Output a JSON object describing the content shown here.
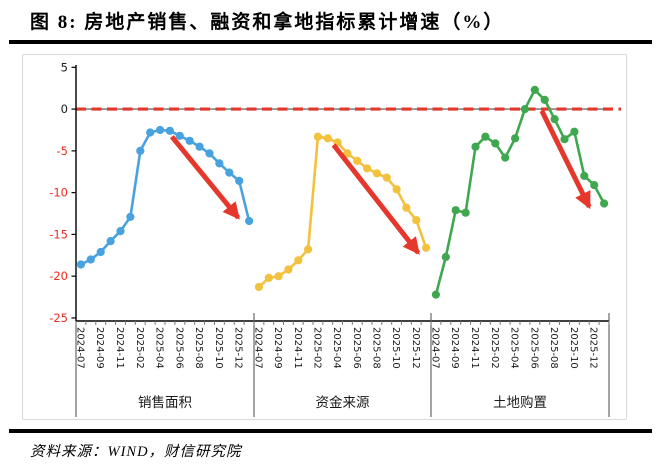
{
  "title": "图 8:  房地产销售、融资和拿地指标累计增速（%）",
  "source": "资料来源：WIND，财信研究院",
  "chart_data": {
    "type": "line",
    "title": "房地产销售、融资和拿地指标累计增速（%）",
    "unit": "%",
    "ylim": [
      -25,
      5
    ],
    "yticks": [
      5,
      0,
      -5,
      -10,
      -15,
      -20,
      -25
    ],
    "grid": false,
    "legend_position": "none",
    "zero_line": {
      "style": "dashed",
      "value": 0
    },
    "x_tick_labels": [
      "2024-07",
      "2024-09",
      "2024-11",
      "2025-02",
      "2025-04",
      "2025-06",
      "2025-08",
      "2025-10",
      "2025-12"
    ],
    "x_tick_label_every": 2,
    "months_per_group": 18,
    "colors": {
      "red": "#E5372B",
      "negative_tick": "#EE2E23",
      "zero_gray": "#6E6E6E",
      "axis": "#000000",
      "minor_tick": "#737373",
      "divider": "#595959",
      "text": "#1a1a1a"
    },
    "groups": [
      {
        "label": "销售面积",
        "color": "#47A2DF",
        "values": [
          -18.6,
          -18.0,
          -17.1,
          -15.8,
          -14.6,
          -12.9,
          -5.0,
          -2.8,
          -2.5,
          -2.6,
          -3.2,
          -3.8,
          -4.5,
          -5.3,
          -6.5,
          -7.6,
          -8.6,
          -13.4
        ]
      },
      {
        "label": "资金来源",
        "color": "#F2C13D",
        "values": [
          -21.3,
          -20.2,
          -20.0,
          -19.2,
          -18.1,
          -16.8,
          -3.3,
          -3.5,
          -4.0,
          -5.3,
          -6.2,
          -7.1,
          -7.7,
          -8.2,
          -9.6,
          -11.8,
          -13.3,
          -16.6
        ]
      },
      {
        "label": "土地购置",
        "color": "#3FA74F",
        "values": [
          -22.2,
          -17.7,
          -12.1,
          -12.4,
          -4.5,
          -3.3,
          -4.1,
          -5.8,
          -3.5,
          0.0,
          2.3,
          1.1,
          -1.2,
          -3.6,
          -2.7,
          -8.0,
          -9.1,
          -11.3
        ]
      }
    ],
    "arrows": [
      {
        "group": 0,
        "from": [
          9.2,
          -3.3
        ],
        "to": [
          15.9,
          -13.0
        ]
      },
      {
        "group": 1,
        "from": [
          7.6,
          -4.3
        ],
        "to": [
          16.2,
          -17.2
        ]
      },
      {
        "group": 2,
        "from": [
          10.7,
          -0.2
        ],
        "to": [
          15.5,
          -11.7
        ]
      }
    ]
  }
}
